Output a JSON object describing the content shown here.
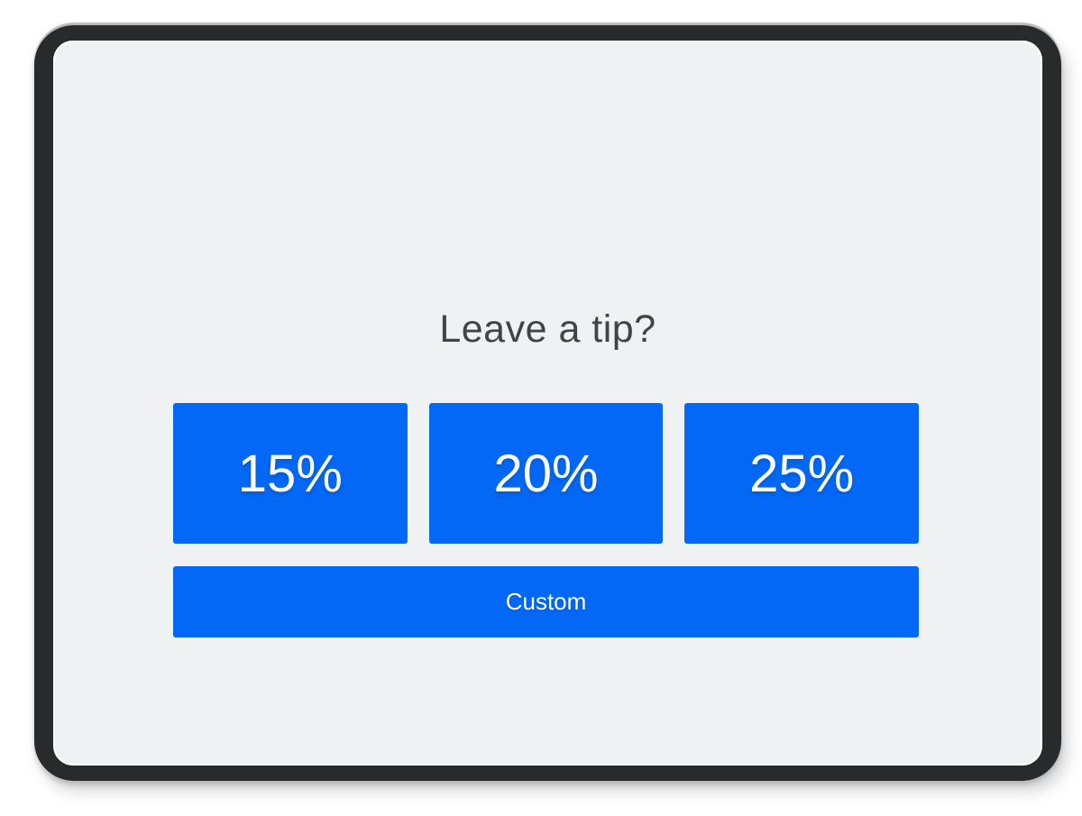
{
  "screen": {
    "title": "Leave a tip?",
    "tip_options": [
      {
        "label": "15%"
      },
      {
        "label": "20%"
      },
      {
        "label": "25%"
      }
    ],
    "custom_label": "Custom"
  },
  "colors": {
    "accent_blue": "#0268f5",
    "screen_background": "#f0f1f3",
    "frame": "#292a2c",
    "title_text": "#404448",
    "button_text": "#ffffff"
  }
}
